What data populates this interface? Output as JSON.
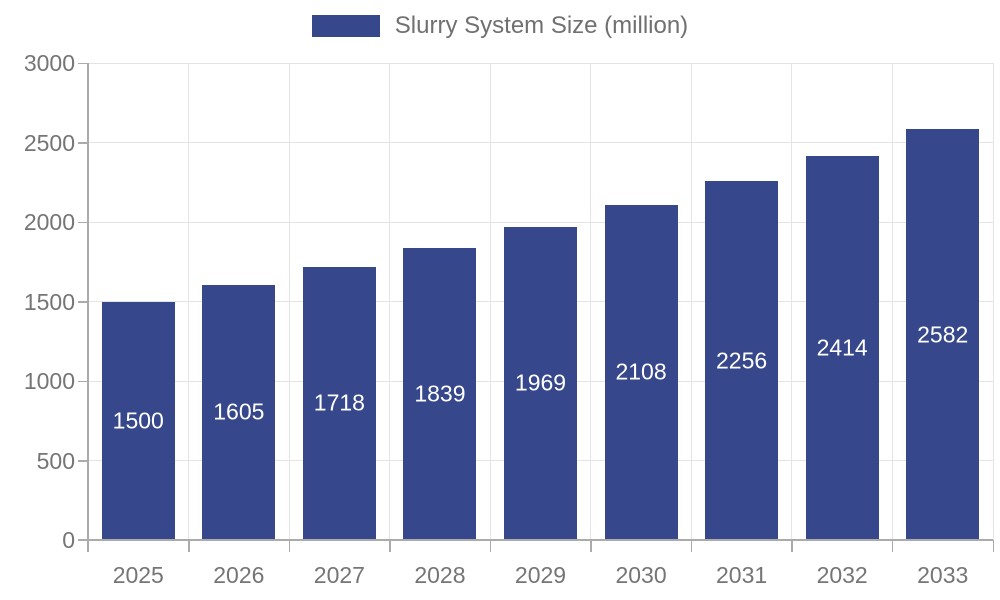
{
  "chart_data": {
    "type": "bar",
    "title": "Slurry System Size (million)",
    "legend_label": "Slurry System Size (million)",
    "legend_position": "top-center",
    "categories": [
      "2025",
      "2026",
      "2027",
      "2028",
      "2029",
      "2030",
      "2031",
      "2032",
      "2033"
    ],
    "values": [
      1500,
      1605,
      1718,
      1839,
      1969,
      2108,
      2256,
      2414,
      2582
    ],
    "xlabel": "",
    "ylabel": "",
    "ylim": [
      0,
      3000
    ],
    "yticks": [
      0,
      500,
      1000,
      1500,
      2000,
      2500,
      3000
    ],
    "grid": true,
    "show_value_labels": true,
    "value_label_position": "inside-center",
    "colors": {
      "bar": "#36478B",
      "value_label": "#FFFFFF",
      "tick_label": "#757575",
      "legend_text": "#707070",
      "gridline": "#E4E4E4",
      "axis_line": "#ABABAB",
      "background": "#FFFFFF"
    }
  }
}
